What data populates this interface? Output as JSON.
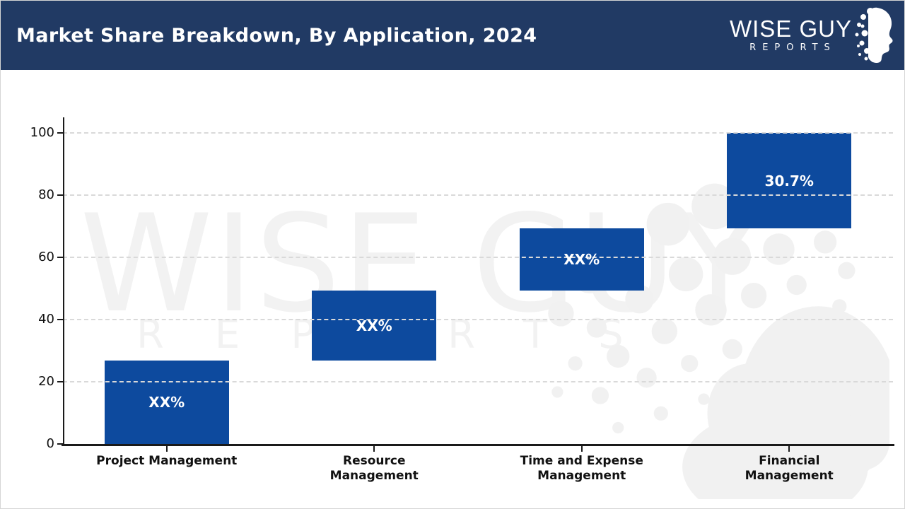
{
  "header": {
    "title": "Market Share Breakdown, By Application, 2024",
    "logo": {
      "name": "WISE GUY",
      "sub": "REPORTS"
    }
  },
  "watermark": {
    "line1": "WISE GUY",
    "line2": "REPORTS"
  },
  "colors": {
    "header_bg": "#213a64",
    "bar": "#0d4a9e",
    "axis": "#1a1a1a",
    "grid": "#d9d9d9",
    "watermark": "#f2f2f2",
    "frame": "#d6d6d6"
  },
  "chart_data": {
    "type": "bar",
    "variant": "waterfall",
    "title": "Market Share Breakdown, By Application, 2024",
    "categories": [
      "Project Management",
      "Resource Management",
      "Time and Expense Management",
      "Financial Management"
    ],
    "category_label_lines": [
      [
        "Project Management"
      ],
      [
        "Resource",
        "Management"
      ],
      [
        "Time and Expense",
        "Management"
      ],
      [
        "Financial",
        "Management"
      ]
    ],
    "segments": [
      {
        "category": "Project Management",
        "start": 0,
        "end": 26.8,
        "label": "XX%"
      },
      {
        "category": "Resource Management",
        "start": 26.8,
        "end": 49.3,
        "label": "XX%"
      },
      {
        "category": "Time and Expense Management",
        "start": 49.3,
        "end": 69.3,
        "label": "XX%"
      },
      {
        "category": "Financial Management",
        "start": 69.3,
        "end": 100,
        "label": "30.7%"
      }
    ],
    "xlabel": "",
    "ylabel": "",
    "ylim": [
      0,
      100
    ],
    "yticks": [
      0,
      20,
      40,
      60,
      80,
      100
    ],
    "grid": {
      "horizontal": true,
      "style": "dashed",
      "drawn_over_bars": true
    },
    "legend": "none",
    "bar_color": "#0d4a9e",
    "bar_label_color": "#ffffff"
  }
}
